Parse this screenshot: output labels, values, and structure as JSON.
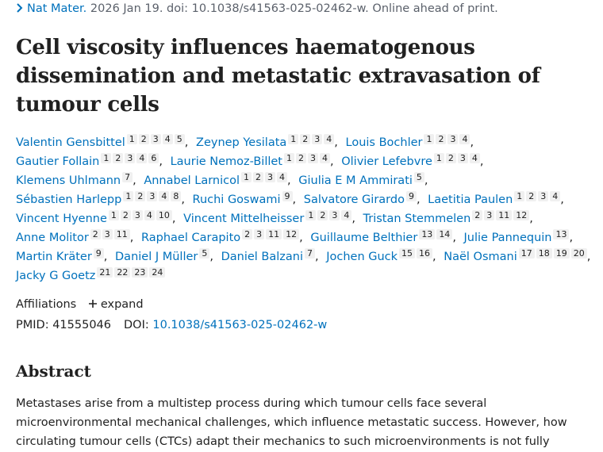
{
  "citation": {
    "journal": "Nat Mater.",
    "details": "2026 Jan 19. doi: 10.1038/s41563-025-02462-w. Online ahead of print."
  },
  "title": "Cell viscosity influences haematogenous dissemination and metastatic extravasation of tumour cells",
  "author_separator": ",",
  "authors": [
    {
      "name": "Valentin Gensbittel",
      "affiliations": [
        1,
        2,
        3,
        4,
        5
      ]
    },
    {
      "name": "Zeynep Yesilata",
      "affiliations": [
        1,
        2,
        3,
        4
      ]
    },
    {
      "name": "Louis Bochler",
      "affiliations": [
        1,
        2,
        3,
        4
      ]
    },
    {
      "name": "Gautier Follain",
      "affiliations": [
        1,
        2,
        3,
        4,
        6
      ]
    },
    {
      "name": "Laurie Nemoz-Billet",
      "affiliations": [
        1,
        2,
        3,
        4
      ]
    },
    {
      "name": "Olivier Lefebvre",
      "affiliations": [
        1,
        2,
        3,
        4
      ]
    },
    {
      "name": "Klemens Uhlmann",
      "affiliations": [
        7
      ]
    },
    {
      "name": "Annabel Larnicol",
      "affiliations": [
        1,
        2,
        3,
        4
      ]
    },
    {
      "name": "Giulia E M Ammirati",
      "affiliations": [
        5
      ]
    },
    {
      "name": "Sébastien Harlepp",
      "affiliations": [
        1,
        2,
        3,
        4,
        8
      ]
    },
    {
      "name": "Ruchi Goswami",
      "affiliations": [
        9
      ]
    },
    {
      "name": "Salvatore Girardo",
      "affiliations": [
        9
      ]
    },
    {
      "name": "Laetitia Paulen",
      "affiliations": [
        1,
        2,
        3,
        4
      ]
    },
    {
      "name": "Vincent Hyenne",
      "affiliations": [
        1,
        2,
        3,
        4,
        10
      ]
    },
    {
      "name": "Vincent Mittelheisser",
      "affiliations": [
        1,
        2,
        3,
        4
      ]
    },
    {
      "name": "Tristan Stemmelen",
      "affiliations": [
        2,
        3,
        11,
        12
      ]
    },
    {
      "name": "Anne Molitor",
      "affiliations": [
        2,
        3,
        11
      ]
    },
    {
      "name": "Raphael Carapito",
      "affiliations": [
        2,
        3,
        11,
        12
      ]
    },
    {
      "name": "Guillaume Belthier",
      "affiliations": [
        13,
        14
      ]
    },
    {
      "name": "Julie Pannequin",
      "affiliations": [
        13
      ]
    },
    {
      "name": "Martin Kräter",
      "affiliations": [
        9
      ]
    },
    {
      "name": "Daniel J Müller",
      "affiliations": [
        5
      ]
    },
    {
      "name": "Daniel Balzani",
      "affiliations": [
        7
      ]
    },
    {
      "name": "Jochen Guck",
      "affiliations": [
        15,
        16
      ]
    },
    {
      "name": "Naël Osmani",
      "affiliations": [
        17,
        18,
        19,
        20
      ]
    },
    {
      "name": "Jacky G Goetz",
      "affiliations": [
        21,
        22,
        23,
        24
      ]
    }
  ],
  "affiliations_label": "Affiliations",
  "expand": "expand",
  "ids": {
    "pmid_label": "PMID:",
    "pmid": "41555046",
    "doi_label": "DOI:",
    "doi": "10.1038/s41563-025-02462-w"
  },
  "abstract": {
    "heading": "Abstract",
    "text": "Metastases arise from a multistep process during which tumour cells face several microenvironmental mechanical challenges, which influence metastatic success. However, how circulating tumour cells (CTCs) adapt their mechanics to such microenvironments is not fully understood. Here we report that"
  }
}
